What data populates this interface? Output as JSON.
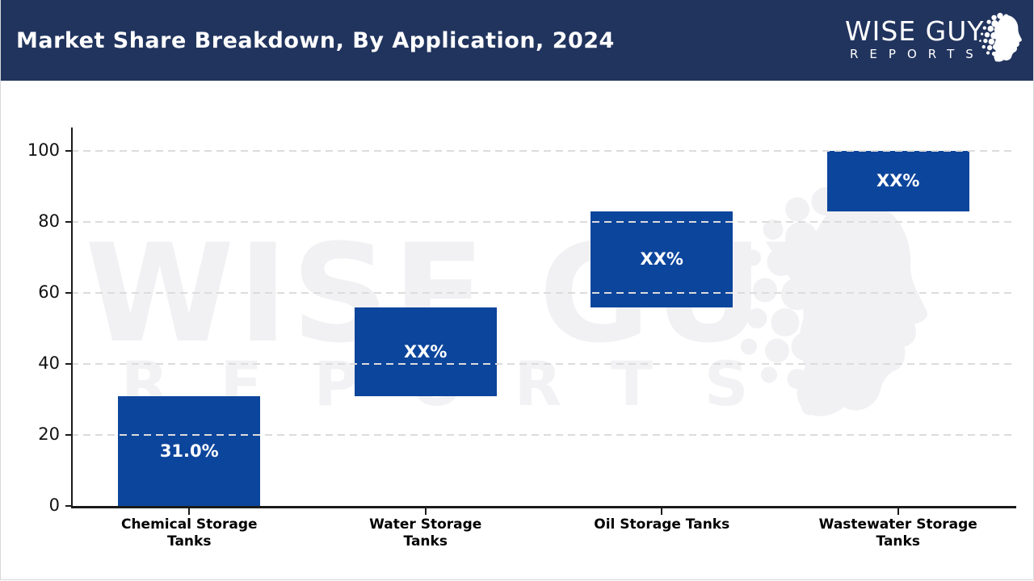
{
  "header": {
    "title": "Market Share Breakdown, By Application, 2024",
    "logo": {
      "line1": "WISE GUY",
      "line2": "REPORTS"
    }
  },
  "watermark": {
    "line1": "WISE GUY",
    "line2": "REPORTS"
  },
  "colors": {
    "header_bg": "#21345e",
    "bar": "#0c459c",
    "grid": "#dcdcdc",
    "axis": "#1a1a1a",
    "watermark": "#f1f1f3"
  },
  "chart_data": {
    "type": "bar",
    "subtype": "waterfall",
    "title": "Market Share Breakdown, By Application, 2024",
    "xlabel": "",
    "ylabel": "",
    "ylim": [
      0,
      100
    ],
    "yticks": [
      0,
      20,
      40,
      60,
      80,
      100
    ],
    "grid": "dashed-horizontal",
    "legend": null,
    "bar_color": "#0c459c",
    "categories": [
      "Chemical Storage Tanks",
      "Water Storage Tanks",
      "Oil Storage Tanks",
      "Wastewater Storage Tanks"
    ],
    "categories_lines": [
      [
        "Chemical Storage",
        "Tanks"
      ],
      [
        "Water Storage",
        "Tanks"
      ],
      [
        "Oil Storage Tanks"
      ],
      [
        "Wastewater Storage",
        "Tanks"
      ]
    ],
    "values": [
      31,
      25,
      27,
      17
    ],
    "segments": [
      {
        "category": "Chemical Storage Tanks",
        "start": 0,
        "end": 31,
        "label": "31.0%"
      },
      {
        "category": "Water Storage Tanks",
        "start": 31,
        "end": 56,
        "label": "XX%"
      },
      {
        "category": "Oil Storage Tanks",
        "start": 56,
        "end": 83,
        "label": "XX%"
      },
      {
        "category": "Wastewater Storage Tanks",
        "start": 83,
        "end": 100,
        "label": "XX%"
      }
    ]
  }
}
